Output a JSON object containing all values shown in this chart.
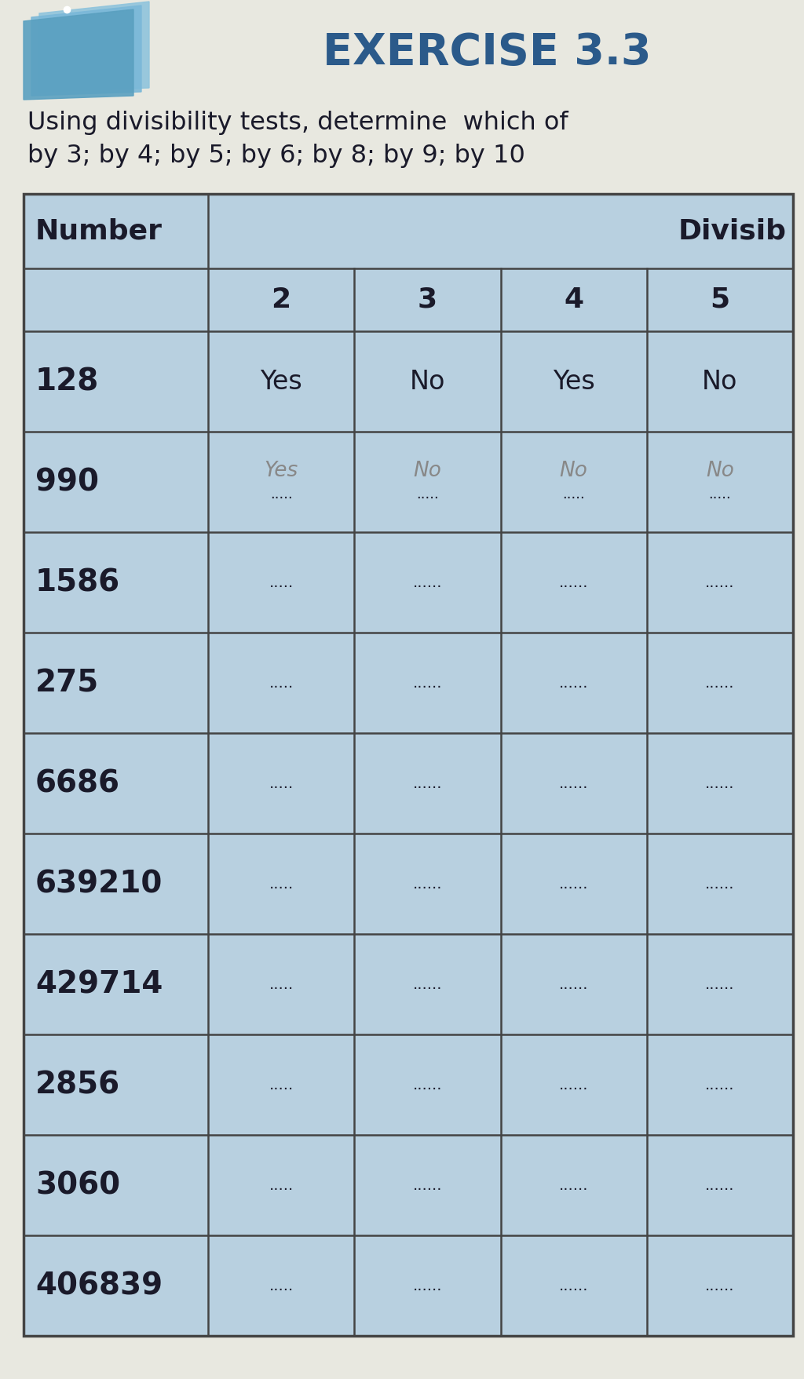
{
  "title": "EXERCISE 3.3",
  "subtitle_line1": "Using divisibility tests, determine  which of",
  "subtitle_line2": "by 3; by 4; by 5; by 6; by 8; by 9; by 10",
  "header_col": "Number",
  "header_right": "Divisib",
  "divisors": [
    "2",
    "3",
    "4",
    "5"
  ],
  "numbers": [
    "128",
    "990",
    "1586",
    "275",
    "6686",
    "639210",
    "429714",
    "2856",
    "3060",
    "406839"
  ],
  "first_row_answers": [
    "Yes",
    "No",
    "Yes",
    "No"
  ],
  "second_row_handwritten": [
    "Yes",
    "No",
    "No",
    "No"
  ],
  "dots_short": ".....",
  "dots_long": "......",
  "bg_color": "#e8e8e0",
  "table_bg": "#b8d0e0",
  "title_color": "#2b5a8a",
  "text_color": "#1a1a2a",
  "border_color": "#444444",
  "handwritten_color": "#888888",
  "fig_width": 10.24,
  "fig_height": 17.57
}
